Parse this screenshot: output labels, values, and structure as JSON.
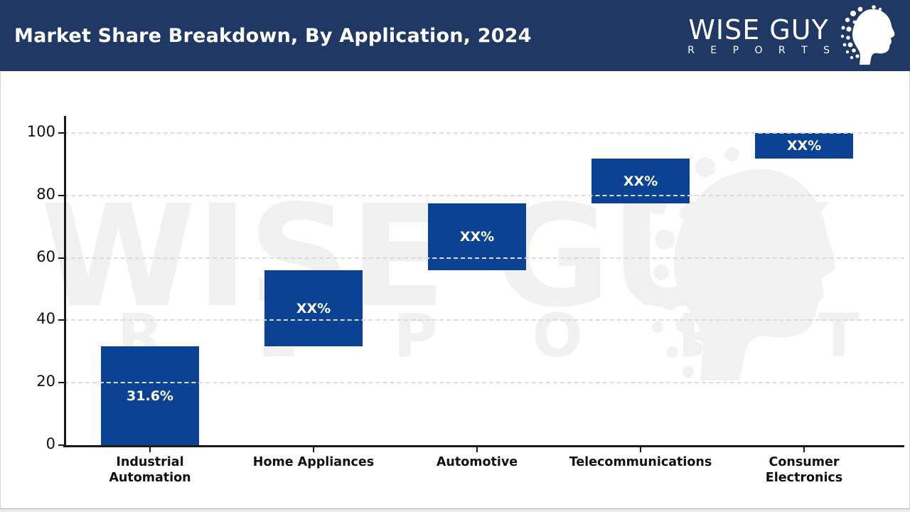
{
  "header": {
    "title": "Market Share Breakdown, By Application, 2024",
    "logo": {
      "name": "WISE GUY",
      "sub": "R E P O R T S"
    }
  },
  "watermark": {
    "line1": "WISE GUY",
    "line2": "R E P O R T S"
  },
  "colors": {
    "header_bg": "#1f3864",
    "bar": "#0b4294",
    "bar_label": "#ffffff",
    "grid": "#dcdcdc",
    "axis": "#1a1a1a",
    "watermark": "#f1f1f1"
  },
  "chart_data": {
    "type": "bar",
    "subtype": "floating-waterfall-segments",
    "title": "Market Share Breakdown, By Application, 2024",
    "categories": [
      "Industrial Automation",
      "Home Appliances",
      "Automotive",
      "Telecommunications",
      "Consumer Electronics"
    ],
    "bars": [
      {
        "category": "Industrial Automation",
        "lines": [
          "Industrial",
          "Automation"
        ],
        "start": 0,
        "end": 31.6,
        "label": "31.6%"
      },
      {
        "category": "Home Appliances",
        "lines": [
          "Home Appliances"
        ],
        "start": 31.6,
        "end": 56.0,
        "label": "XX%"
      },
      {
        "category": "Automotive",
        "lines": [
          "Automotive"
        ],
        "start": 56.0,
        "end": 77.5,
        "label": "XX%"
      },
      {
        "category": "Telecommunications",
        "lines": [
          "Telecommunications"
        ],
        "start": 77.5,
        "end": 91.7,
        "label": "XX%"
      },
      {
        "category": "Consumer Electronics",
        "lines": [
          "Consumer",
          "Electronics"
        ],
        "start": 91.7,
        "end": 100.0,
        "label": "XX%"
      }
    ],
    "ylim": [
      0,
      100
    ],
    "yticks": [
      0,
      20,
      40,
      60,
      80,
      100
    ],
    "xlabel": "",
    "ylabel": "",
    "grid": "horizontal-dashed",
    "legend": "none"
  }
}
